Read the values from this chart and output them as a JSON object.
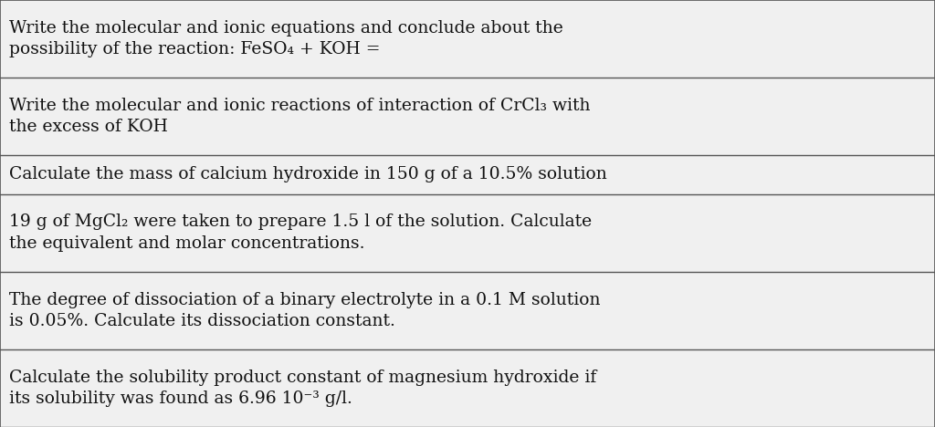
{
  "rows": [
    "Write the molecular and ionic equations and conclude about the\npossibility of the reaction: FeSO₄ + KOH =",
    "Write the molecular and ionic reactions of interaction of CrCl₃ with\nthe excess of KOH",
    "Calculate the mass of calcium hydroxide in 150 g of a 10.5% solution",
    "19 g of MgCl₂ were taken to prepare 1.5 l of the solution. Calculate\nthe equivalent and molar concentrations.",
    "The degree of dissociation of a binary electrolyte in a 0.1 M solution\nis 0.05%. Calculate its dissociation constant.",
    "Calculate the solubility product constant of magnesium hydroxide if\nits solubility was found as 6.96 10⁻³ g/l."
  ],
  "bg_color": "#f0f0f0",
  "text_color": "#111111",
  "line_color": "#555555",
  "font_size": 13.5,
  "figsize": [
    10.24,
    4.68
  ],
  "dpi": 100
}
